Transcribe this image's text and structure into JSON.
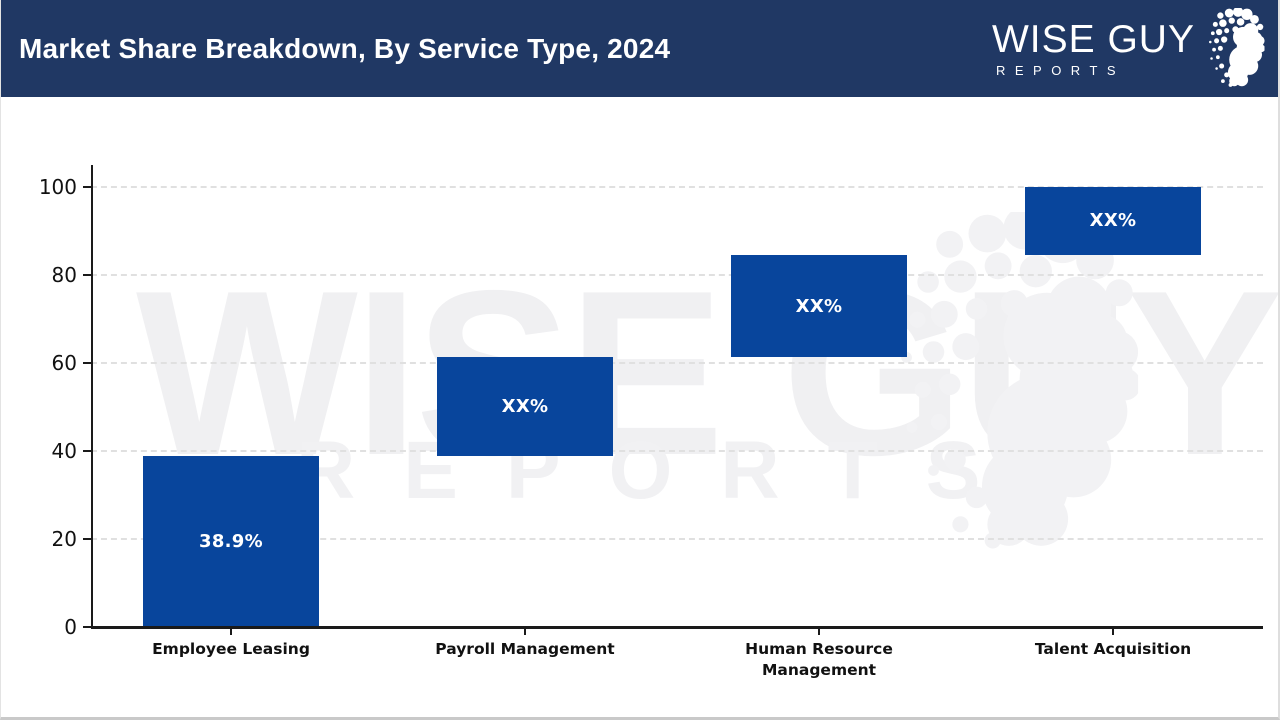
{
  "header": {
    "title": "Market Share Breakdown, By Service Type, 2024",
    "logo": {
      "name": "WISE GUY",
      "tagline": "REPORTS"
    }
  },
  "watermark": {
    "name": "WISE GUY",
    "tagline": "REPORTS"
  },
  "chart_data": {
    "type": "bar",
    "subtype": "floating-waterfall",
    "title": "Market Share Breakdown, By Service Type, 2024",
    "categories": [
      "Employee Leasing",
      "Payroll Management",
      "Human Resource Management",
      "Talent Acquisition"
    ],
    "bars": [
      {
        "category": "Employee Leasing",
        "start": 0,
        "end": 38.9,
        "label": "38.9%"
      },
      {
        "category": "Payroll Management",
        "start": 38.9,
        "end": 61.3,
        "label": "XX%"
      },
      {
        "category": "Human Resource Management",
        "start": 61.3,
        "end": 84.5,
        "label": "XX%"
      },
      {
        "category": "Talent Acquisition",
        "start": 84.5,
        "end": 100,
        "label": "XX%"
      }
    ],
    "yticks": [
      0,
      20,
      40,
      60,
      80,
      100
    ],
    "ylim": [
      0,
      105
    ],
    "xlabel": "",
    "ylabel": "",
    "grid": true,
    "grid_style": "dashed",
    "legend": "none",
    "colors": {
      "bar": "#08459c",
      "bar_label": "#ffffff",
      "grid": "#e0e0e0",
      "axis": "#1a1a1a",
      "tick_label": "#111111",
      "header_bg": "#203864",
      "header_text": "#ffffff",
      "watermark": "#f0f0f2"
    }
  }
}
